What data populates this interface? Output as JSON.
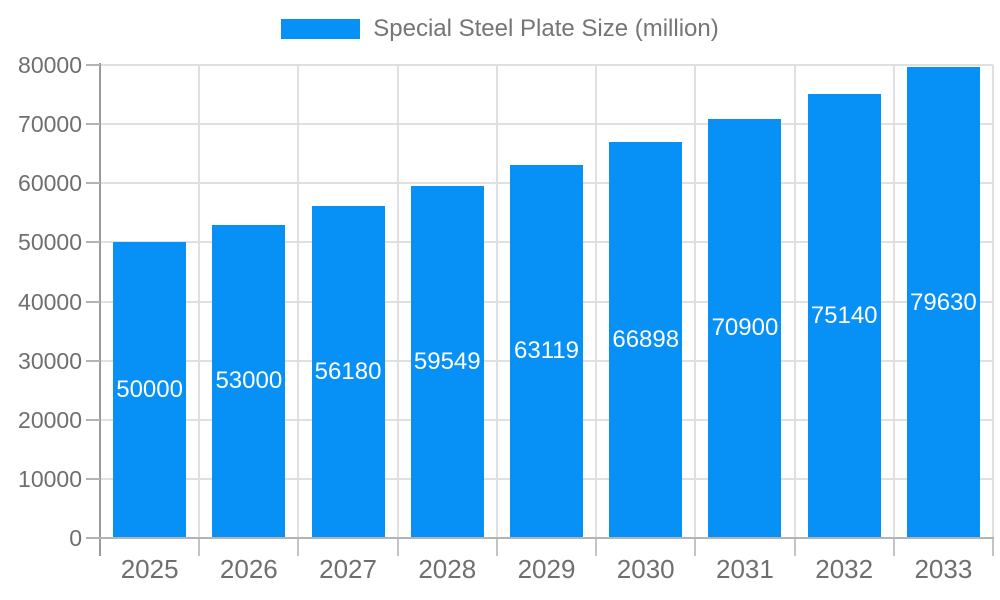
{
  "legend": {
    "label": "Special Steel Plate Size (million)",
    "swatch_color": "#0790f6"
  },
  "chart_data": {
    "type": "bar",
    "title": "Special Steel Plate Size (million)",
    "categories": [
      "2025",
      "2026",
      "2027",
      "2028",
      "2029",
      "2030",
      "2031",
      "2032",
      "2033"
    ],
    "values": [
      50000,
      53000,
      56180,
      59549,
      63119,
      66898,
      70900,
      75140,
      79630
    ],
    "value_labels": [
      "50000",
      "53000",
      "56180",
      "59549",
      "63119",
      "66898",
      "70900",
      "75140",
      "79630"
    ],
    "xlabel": "",
    "ylabel": "",
    "ylim": [
      0,
      80000
    ],
    "ytick_labels": [
      "0",
      "10000",
      "20000",
      "30000",
      "40000",
      "50000",
      "60000",
      "70000",
      "80000"
    ],
    "grid": true,
    "legend_position": "top-center",
    "colors": {
      "bar": "#0790f6",
      "bar_label_text": "#ffffff",
      "axis_label_text": "#6f6f6f",
      "legend_text": "#757575",
      "gridline": "#e0e0e0",
      "y_axis_line": "#9b9b9b",
      "x_axis_line": "#b3b3b3",
      "background": "#ffffff"
    }
  }
}
